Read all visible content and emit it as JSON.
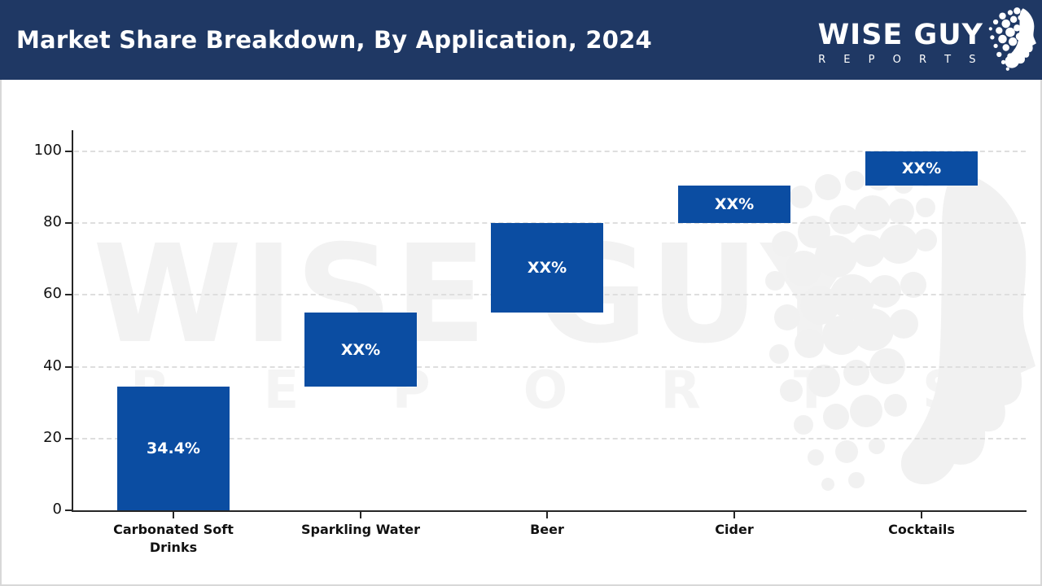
{
  "header": {
    "title": "Market Share Breakdown, By Application, 2024",
    "logo": {
      "name_top": "WISE GUY",
      "name_bottom": "R E P O R T S"
    }
  },
  "watermark": {
    "text_top": "WISE GUY",
    "text_bottom": "R E P O R T S"
  },
  "colors": {
    "header_bg": "#1f3864",
    "bar": "#0b4da2",
    "bar_label": "#ffffff",
    "grid": "#dedede",
    "axis": "#262626",
    "watermark": "#f2f2f2"
  },
  "chart_data": {
    "type": "bar",
    "subtype": "floating-waterfall",
    "title": "Market Share Breakdown, By Application, 2024",
    "categories": [
      "Carbonated Soft Drinks",
      "Sparkling Water",
      "Beer",
      "Cider",
      "Cocktails"
    ],
    "series": [
      {
        "name": "Market Share (%)",
        "segments": [
          {
            "category": "Carbonated Soft Drinks",
            "start": 0,
            "end": 34.4,
            "label": "34.4%"
          },
          {
            "category": "Sparkling Water",
            "start": 34.4,
            "end": 55,
            "label": "XX%"
          },
          {
            "category": "Beer",
            "start": 55,
            "end": 80,
            "label": "XX%"
          },
          {
            "category": "Cider",
            "start": 80,
            "end": 90.5,
            "label": "XX%"
          },
          {
            "category": "Cocktails",
            "start": 90.5,
            "end": 100,
            "label": "XX%"
          }
        ]
      }
    ],
    "yticks": [
      0,
      20,
      40,
      60,
      80,
      100
    ],
    "ylim": [
      0,
      105
    ],
    "xlabel": "",
    "ylabel": "",
    "grid": "horizontal-dashed",
    "legend": "none"
  }
}
